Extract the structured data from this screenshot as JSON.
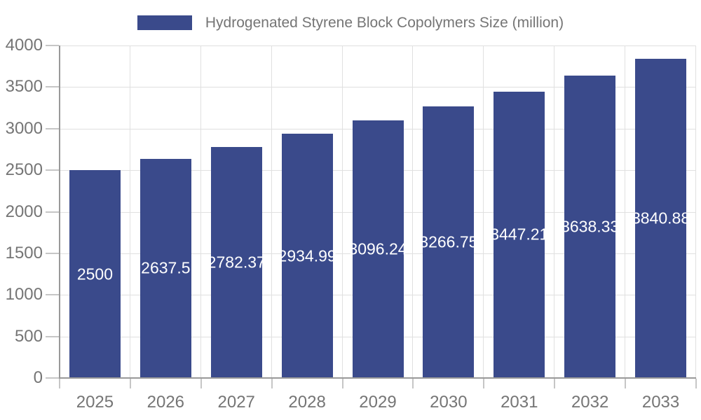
{
  "chart_data": {
    "type": "bar",
    "title": "",
    "legend": [
      "Hydrogenated Styrene Block Copolymers Size (million)"
    ],
    "legend_position": "top",
    "categories": [
      "2025",
      "2026",
      "2027",
      "2028",
      "2029",
      "2030",
      "2031",
      "2032",
      "2033"
    ],
    "values": [
      2500,
      2637.5,
      2782.37,
      2934.99,
      3096.24,
      3266.75,
      3447.21,
      3638.33,
      3840.88
    ],
    "value_labels": [
      "2500",
      "2637.5",
      "2782.37",
      "2934.99",
      "3096.24",
      "3266.75",
      "3447.21",
      "3638.33",
      "3840.88"
    ],
    "xlabel": "",
    "ylabel": "",
    "ylim": [
      0,
      4000
    ],
    "yticks": [
      0,
      500,
      1000,
      1500,
      2000,
      2500,
      3000,
      3500,
      4000
    ],
    "grid": true
  },
  "colors": {
    "bar": "#3A4A8B",
    "axis_line": "#999999",
    "gridline": "#E0E0E0",
    "tick": "#C6C6C6",
    "axis_text": "#757575",
    "bar_label_text": "#FFFFFF",
    "background": "#FFFFFF"
  }
}
